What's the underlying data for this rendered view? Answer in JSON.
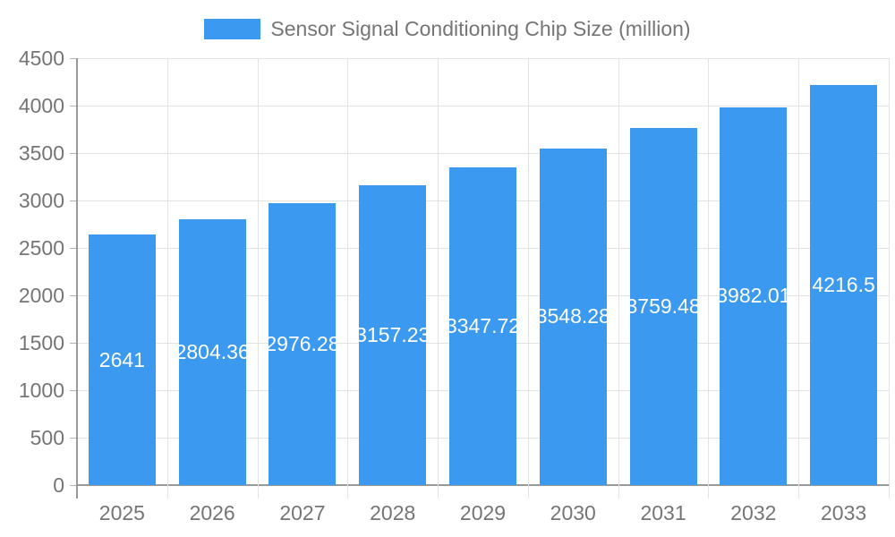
{
  "legend": {
    "label": "Sensor Signal Conditioning Chip Size (million)",
    "position": "top"
  },
  "chart_data": {
    "type": "bar",
    "title": "Sensor Signal Conditioning Chip Size (million)",
    "xlabel": "",
    "ylabel": "",
    "categories": [
      "2025",
      "2026",
      "2027",
      "2028",
      "2029",
      "2030",
      "2031",
      "2032",
      "2033"
    ],
    "values": [
      2641,
      2804.36,
      2976.28,
      3157.23,
      3347.72,
      3548.28,
      3759.48,
      3982.01,
      4216.5
    ],
    "value_labels": [
      "2641",
      "2804.36",
      "2976.28",
      "3157.23",
      "3347.72",
      "3548.28",
      "3759.48",
      "3982.01",
      "4216.5"
    ],
    "ylim": [
      0,
      4500
    ],
    "ytick_step": 500,
    "yticks": [
      0,
      500,
      1000,
      1500,
      2000,
      2500,
      3000,
      3500,
      4000,
      4500
    ],
    "grid": true,
    "legend_position": "top",
    "colors": {
      "bar": "#3B99F0",
      "bar_label": "#ffffff",
      "axis_text": "#757575",
      "gridline": "#e3e3e3",
      "axis_line": "#999999",
      "tick_y": "#b3b3b3"
    }
  }
}
